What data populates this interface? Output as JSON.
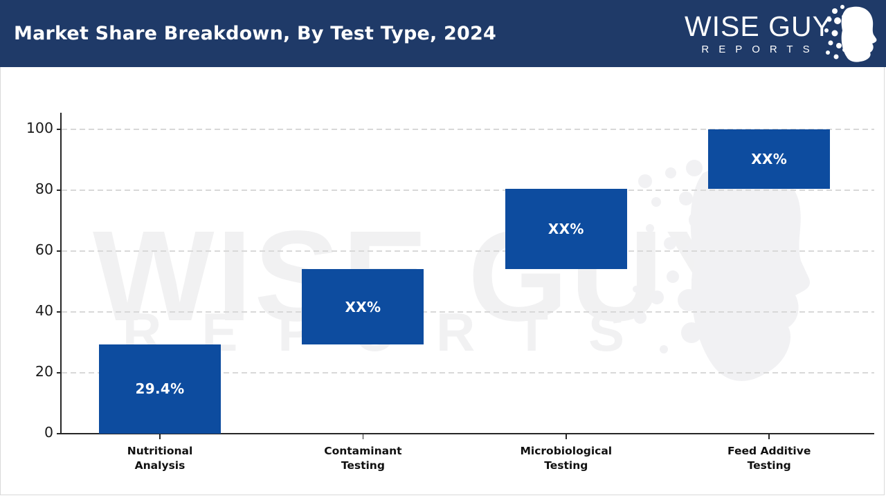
{
  "header": {
    "title": "Market Share Breakdown, By Test Type, 2024",
    "logo": {
      "line1": "WISE GUY",
      "line2": "REPORTS"
    }
  },
  "watermark": {
    "line1": "WISE GUY",
    "line2": "REPORTS"
  },
  "colors": {
    "header_bg": "#1f3a68",
    "bar_blue": "#0d4c9f",
    "grid": "#d8d8d8",
    "axis": "#262626",
    "watermark": "#f1f1f2",
    "on_bar": "#ffffff",
    "cat": "#111111",
    "tick": "#1a1a1a",
    "frame": "#d9d9d9"
  },
  "chart_data": {
    "type": "bar",
    "variant": "floating-segment-waterfall",
    "title": "Market Share Breakdown, By Test Type, 2024",
    "categories": [
      {
        "line1": "Nutritional",
        "line2": "Analysis"
      },
      {
        "line1": "Contaminant",
        "line2": "Testing"
      },
      {
        "line1": "Microbiological",
        "line2": "Testing"
      },
      {
        "line1": "Feed Additive",
        "line2": "Testing"
      }
    ],
    "bars": [
      {
        "category": "Nutritional Analysis",
        "start": 0,
        "end": 29.4,
        "label": "29.4%"
      },
      {
        "category": "Contaminant Testing",
        "start": 29.4,
        "end": 54,
        "label": "XX%"
      },
      {
        "category": "Microbiological Testing",
        "start": 54,
        "end": 80.5,
        "label": "XX%"
      },
      {
        "category": "Feed Additive Testing",
        "start": 80.5,
        "end": 100,
        "label": "XX%"
      }
    ],
    "ylim": [
      0,
      100
    ],
    "yticks": [
      0,
      20,
      40,
      60,
      80,
      100
    ],
    "xlabel": "",
    "ylabel": "",
    "legend": "none",
    "grid": "horizontal-dashed"
  }
}
